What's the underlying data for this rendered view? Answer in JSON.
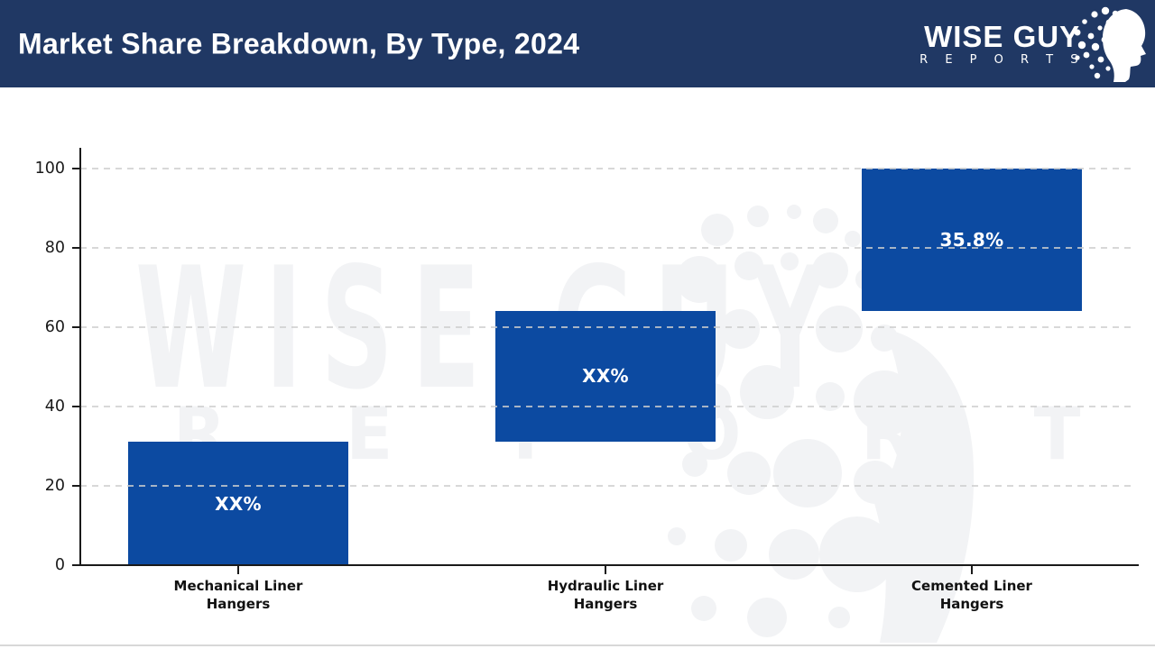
{
  "header": {
    "title": "Market Share Breakdown, By Type, 2024",
    "logo_wordmark": "WISE GUY",
    "logo_subtitle": "R E P O R T S"
  },
  "watermark": {
    "wordmark": "WISE GUY",
    "subtitle": "R E P O R T S"
  },
  "colors": {
    "header_background": "#203864",
    "bar_fill": "#0c4aa1",
    "bar_label": "#ffffff",
    "axis": "#1a1a1a",
    "gridline": "#d9d9d9",
    "watermark": "#f2f3f5"
  },
  "chart_data": {
    "type": "bar",
    "subtype": "floating-segment-waterfall",
    "title": "Market Share Breakdown, By Type, 2024",
    "categories": [
      {
        "lines": [
          "Mechanical Liner",
          "Hangers"
        ]
      },
      {
        "lines": [
          "Hydraulic Liner",
          "Hangers"
        ]
      },
      {
        "lines": [
          "Cemented Liner",
          "Hangers"
        ]
      }
    ],
    "segments": [
      {
        "category": "Mechanical Liner Hangers",
        "start": 0,
        "end": 31.1,
        "label": "XX%"
      },
      {
        "category": "Hydraulic Liner Hangers",
        "start": 31.1,
        "end": 64.2,
        "label": "XX%"
      },
      {
        "category": "Cemented Liner Hangers",
        "start": 64.2,
        "end": 100,
        "label": "35.8%"
      }
    ],
    "ylim": [
      0,
      100
    ],
    "yticks": [
      0,
      20,
      40,
      60,
      80,
      100
    ],
    "grid": "horizontal-dashed",
    "legend": "none",
    "xlabel": "",
    "ylabel": ""
  }
}
